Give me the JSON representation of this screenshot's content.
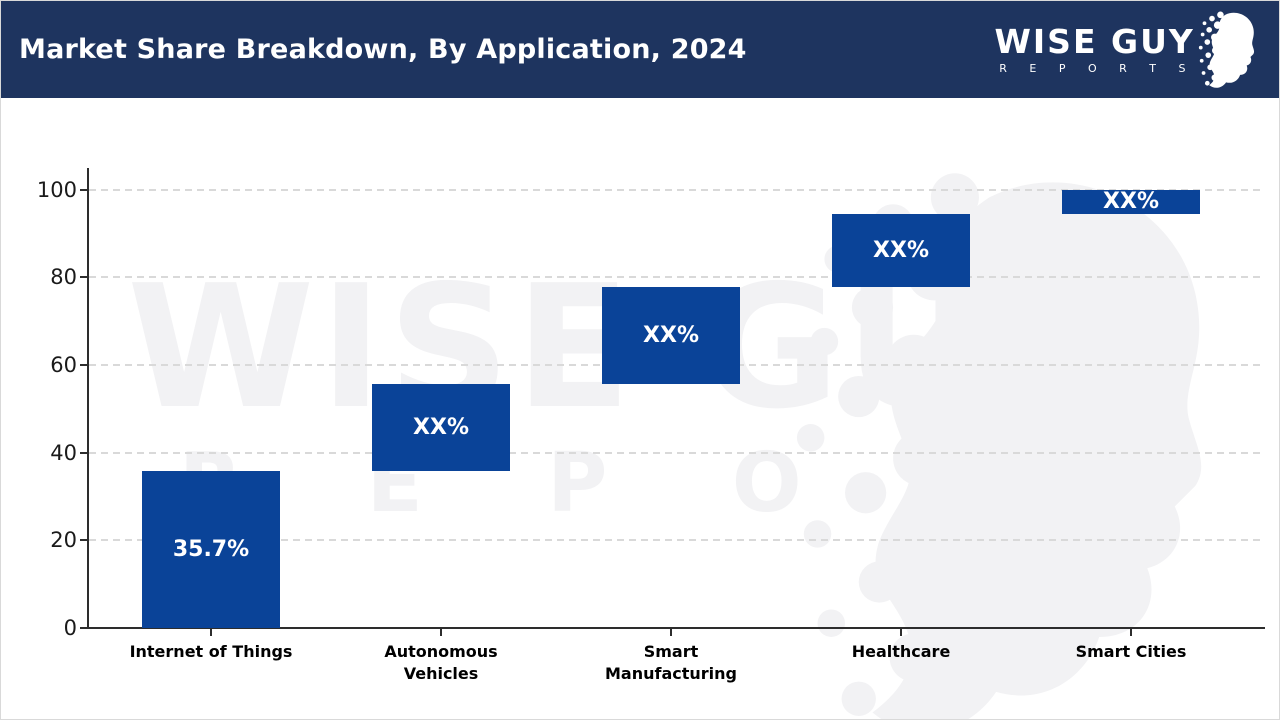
{
  "header": {
    "title": "Market Share Breakdown, By Application, 2024",
    "bg_color": "#1e345f",
    "logo": {
      "line1": "WISE GUY",
      "line2": "R E P O R T S"
    }
  },
  "watermark": {
    "line1": "WISE GUY",
    "line2": "R E P O R T S"
  },
  "chart_data": {
    "type": "bar",
    "subtype": "waterfall-floating-bars",
    "title": "Market Share Breakdown, By Application, 2024",
    "xlabel": "",
    "ylabel": "",
    "ylim": [
      0,
      100
    ],
    "yticks": [
      0,
      20,
      40,
      60,
      80,
      100
    ],
    "grid": "horizontal-dashed",
    "legend": "none",
    "bar_color": "#0a4398",
    "categories": [
      "Internet of Things",
      "Autonomous\nVehicles",
      "Smart\nManufacturing",
      "Healthcare",
      "Smart Cities"
    ],
    "segments": [
      {
        "category": "Internet of Things",
        "start": 0,
        "end": 35.7,
        "label": "35.7%"
      },
      {
        "category": "Autonomous Vehicles",
        "start": 35.7,
        "end": 55.7,
        "label": "XX%"
      },
      {
        "category": "Smart Manufacturing",
        "start": 55.7,
        "end": 77.7,
        "label": "XX%"
      },
      {
        "category": "Healthcare",
        "start": 77.7,
        "end": 94.5,
        "label": "XX%"
      },
      {
        "category": "Smart Cities",
        "start": 94.5,
        "end": 100,
        "label": "XX%"
      }
    ]
  }
}
